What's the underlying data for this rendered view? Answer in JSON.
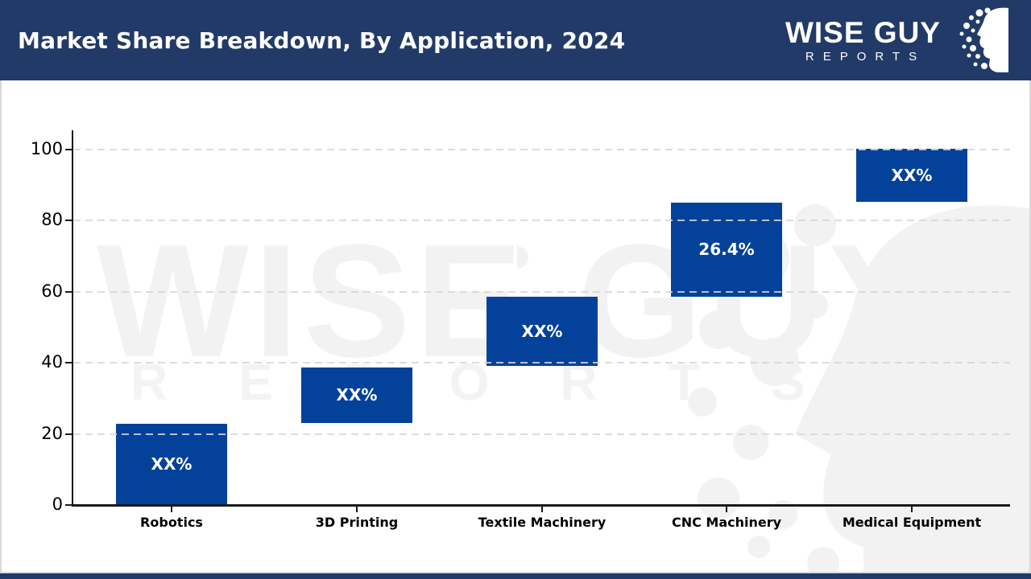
{
  "header": {
    "title": "Market Share Breakdown, By Application, 2024",
    "logo": {
      "line1": "WISE GUY",
      "line2": "REPORTS"
    }
  },
  "watermark": {
    "line1": "WISE GUY",
    "line2": "REPORTS"
  },
  "colors": {
    "header_bg": "#223A67",
    "footer_bg": "#223A67",
    "bar": "#04419A",
    "bar_label": "#FFFFFF",
    "grid": "#D6D6D6",
    "axis": "#1A1A1A",
    "watermark": "#F2F2F2"
  },
  "chart_data": {
    "type": "bar",
    "subtype": "waterfall (floating stacked segments)",
    "title": "Market Share Breakdown, By Application, 2024",
    "xlabel": "",
    "ylabel": "",
    "ylim": [
      0,
      100
    ],
    "yticks": [
      0,
      20,
      40,
      60,
      80,
      100
    ],
    "grid": "horizontal dashed, drawn above bars",
    "legend": "none",
    "categories": [
      "Robotics",
      "3D Printing",
      "Textile Machinery",
      "CNC Machinery",
      "Medical Equipment"
    ],
    "bars": [
      {
        "category": "Robotics",
        "start": 0,
        "end": 22.6,
        "label": "XX%"
      },
      {
        "category": "3D Printing",
        "start": 22.9,
        "end": 38.4,
        "label": "XX%"
      },
      {
        "category": "Textile Machinery",
        "start": 38.9,
        "end": 58.3,
        "label": "XX%"
      },
      {
        "category": "CNC Machinery",
        "start": 58.4,
        "end": 84.8,
        "label": "26.4%"
      },
      {
        "category": "Medical Equipment",
        "start": 84.9,
        "end": 100,
        "label": "XX%"
      }
    ]
  }
}
